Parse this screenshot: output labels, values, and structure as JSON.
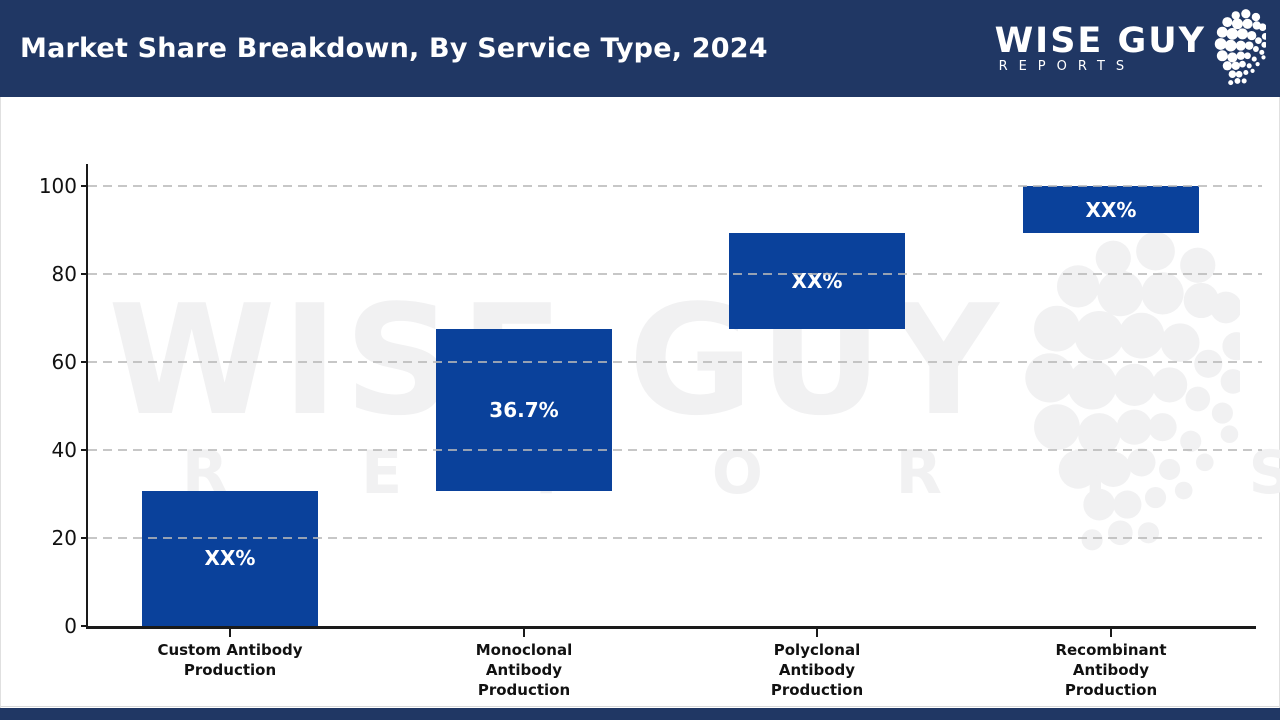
{
  "header": {
    "title": "Market Share Breakdown, By Service Type, 2024",
    "bg_color": "#203764",
    "logo": {
      "line1": "WISE GUY",
      "line2": "REPORTS"
    }
  },
  "watermark": {
    "line1": "WISE GUY",
    "line2": "R E P O R T S"
  },
  "chart_data": {
    "type": "bar",
    "variant": "waterfall-stacked-percentage",
    "title": "Market Share Breakdown, By Service Type, 2024",
    "categories": [
      "Custom Antibody\nProduction",
      "Monoclonal\nAntibody\nProduction",
      "Polyclonal\nAntibody\nProduction",
      "Recombinant\nAntibody\nProduction"
    ],
    "series": [
      {
        "name": "Market share (%)",
        "segments": [
          {
            "category": "Custom Antibody Production",
            "start": 0,
            "end": 30.7,
            "label": "XX%"
          },
          {
            "category": "Monoclonal Antibody Production",
            "start": 30.7,
            "end": 67.4,
            "label": "36.7%"
          },
          {
            "category": "Polyclonal Antibody Production",
            "start": 67.4,
            "end": 89.3,
            "label": "XX%"
          },
          {
            "category": "Recombinant Antibody Production",
            "start": 89.3,
            "end": 100,
            "label": "XX%"
          }
        ]
      }
    ],
    "xlabel": "",
    "ylabel": "",
    "ylim": [
      0,
      100
    ],
    "yticks": [
      0,
      20,
      40,
      60,
      80,
      100
    ],
    "grid": "horizontal-dashed-over-bars",
    "legend": "none",
    "colors": {
      "bar": "#0a419b",
      "bar_label": "#ffffff",
      "axis": "#1a1a1a",
      "gridline": "#c7c7c7",
      "header_bg": "#203764",
      "watermark": "#f1f1f2"
    }
  },
  "footer": {
    "bg_color": "#203764"
  }
}
